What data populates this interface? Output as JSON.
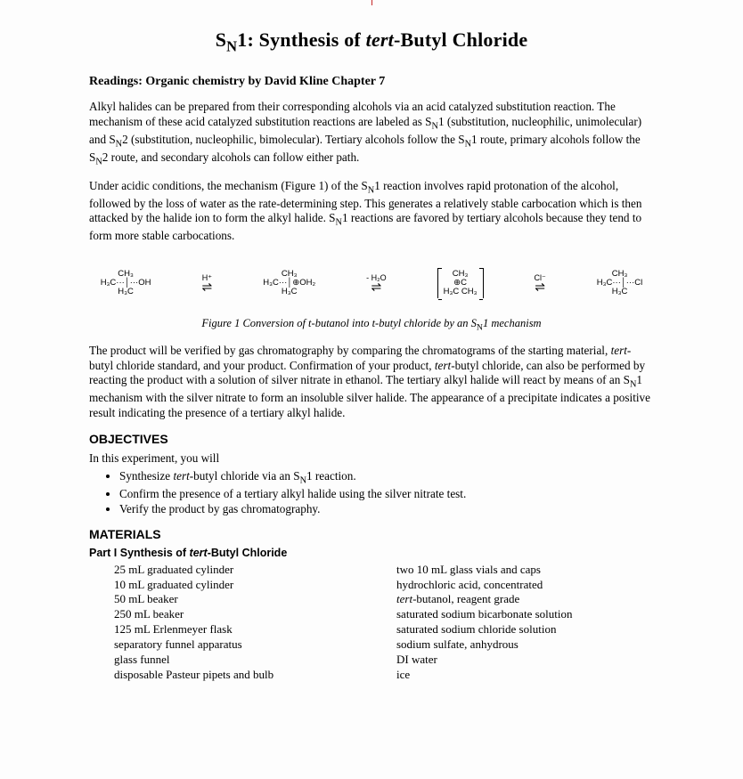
{
  "title": {
    "prefix": "S",
    "sub": "N",
    "rest": "1: Synthesis of ",
    "ital": "tert",
    "suffix": "-Butyl Chloride"
  },
  "readings": "Readings: Organic chemistry by David Kline Chapter 7",
  "para1_a": "Alkyl halides can be prepared from their corresponding alcohols via an acid catalyzed substitution reaction. The mechanism of these acid catalyzed substitution reactions are labeled as S",
  "para1_b": "1 (substitution, nucleophilic, unimolecular) and S",
  "para1_c": "2 (substitution, nucleophilic, bimolecular). Tertiary alcohols follow the S",
  "para1_d": "1 route, primary alcohols follow the S",
  "para1_e": "2 route, and secondary alcohols can follow either path.",
  "para2_a": "Under acidic conditions, the mechanism (Figure 1) of the S",
  "para2_b": "1 reaction involves rapid protonation of the alcohol, followed by the loss of water as the rate-determining step. This generates a relatively stable carbocation which is then attacked by the halide ion to form the alkyl halide. S",
  "para2_c": "1 reactions are favored by tertiary alcohols because they tend to form more stable carbocations.",
  "mech": {
    "m1": {
      "top": "CH₃",
      "mid": "H₃C···│···OH",
      "bot": "H₃C"
    },
    "a1": "H⁺",
    "m2": {
      "top": "CH₃",
      "mid": "H₃C···│⊕OH₂",
      "bot": "H₃C"
    },
    "a2": "- H₂O",
    "m3": {
      "top": "CH₃",
      "mid": "⊕C",
      "bot": "H₃C   CH₃"
    },
    "a3": "Cl⁻",
    "m4": {
      "top": "CH₃",
      "mid": "H₃C···│···Cl",
      "bot": "H₃C"
    }
  },
  "fig_caption_a": "Figure 1  Conversion of t-butanol into t-butyl chloride by an S",
  "fig_caption_b": "1 mechanism",
  "para3_a": "The product will be verified by gas chromatography by comparing the chromatograms of the starting material, ",
  "para3_ital1": "tert",
  "para3_b": "-butyl chloride standard, and your product. Confirmation of your product, ",
  "para3_ital2": "tert",
  "para3_c": "-butyl chloride, can also be performed by reacting the product with a solution of silver nitrate in ethanol. The tertiary alkyl halide will react by means of an S",
  "para3_d": "1 mechanism with the silver nitrate to form an insoluble silver halide. The appearance of a precipitate indicates a positive result indicating the presence of a tertiary alkyl halide.",
  "objectives_head": "OBJECTIVES",
  "obj_lead": "In this experiment, you will",
  "obj_items": [
    {
      "a": "Synthesize ",
      "i": "tert",
      "b": "-butyl chloride via an S",
      "c": "1 reaction."
    },
    {
      "a": "Confirm the presence of a tertiary alkyl halide using the silver nitrate test.",
      "i": "",
      "b": "",
      "c": ""
    },
    {
      "a": "Verify the product by gas chromatography.",
      "i": "",
      "b": "",
      "c": ""
    }
  ],
  "materials_head": "MATERIALS",
  "part1_head_a": "Part I  Synthesis of ",
  "part1_head_i": "tert",
  "part1_head_b": "-Butyl Chloride",
  "materials_left": [
    "25 mL graduated cylinder",
    "10 mL graduated cylinder",
    "50 mL beaker",
    "250 mL beaker",
    "125 mL Erlenmeyer flask",
    "separatory funnel apparatus",
    "glass funnel",
    "disposable Pasteur pipets and bulb"
  ],
  "materials_right": [
    {
      "a": "two 10 mL glass vials and caps"
    },
    {
      "a": "hydrochloric acid, concentrated"
    },
    {
      "i": "tert",
      "a": "-butanol, reagent grade"
    },
    {
      "a": "saturated sodium bicarbonate solution"
    },
    {
      "a": "saturated sodium chloride solution"
    },
    {
      "a": "sodium sulfate, anhydrous"
    },
    {
      "a": "DI water"
    },
    {
      "a": "ice"
    }
  ]
}
